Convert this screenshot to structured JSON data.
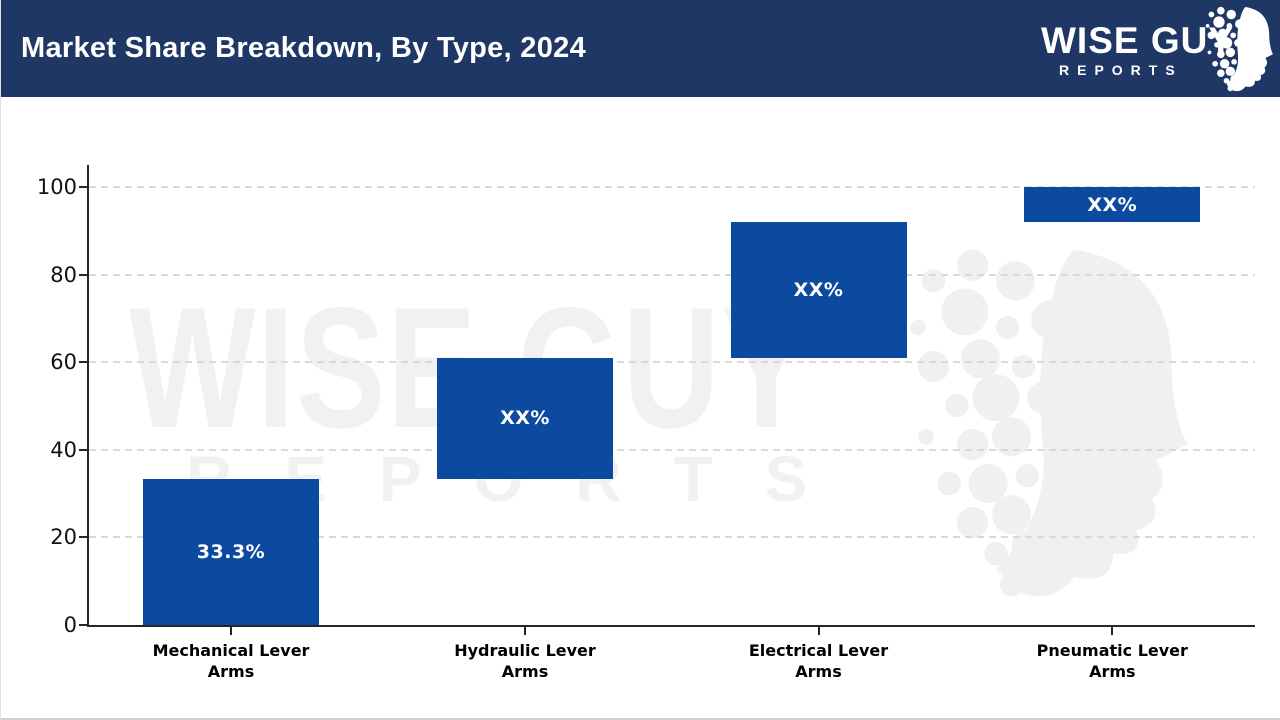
{
  "header": {
    "title": "Market Share Breakdown, By Type, 2024",
    "bg_color": "#1e3765",
    "logo": {
      "line1": "WISE GUY",
      "line2": "REPORTS"
    }
  },
  "watermark": {
    "line1": "WISE GUY",
    "line2": "REPORTS"
  },
  "chart_data": {
    "type": "bar",
    "subtype": "waterfall-stacked",
    "title": "Market Share Breakdown, By Type, 2024",
    "categories": [
      "Mechanical Lever Arms",
      "Hydraulic Lever Arms",
      "Electrical Lever Arms",
      "Pneumatic Lever Arms"
    ],
    "segments": [
      {
        "category": "Mechanical Lever Arms",
        "start": 0,
        "end": 33.3,
        "label": "33.3%"
      },
      {
        "category": "Hydraulic Lever Arms",
        "start": 33.3,
        "end": 61,
        "label": "XX%"
      },
      {
        "category": "Electrical Lever Arms",
        "start": 61,
        "end": 92,
        "label": "XX%"
      },
      {
        "category": "Pneumatic Lever Arms",
        "start": 92,
        "end": 100,
        "label": "XX%"
      }
    ],
    "y_ticks": [
      0,
      20,
      40,
      60,
      80,
      100
    ],
    "ylim": [
      0,
      105
    ],
    "xlabel": "",
    "ylabel": "",
    "grid": true,
    "grid_style": "dashed",
    "legend": false,
    "bar_color": "#0b4a9f",
    "label_color": "#ffffff"
  }
}
